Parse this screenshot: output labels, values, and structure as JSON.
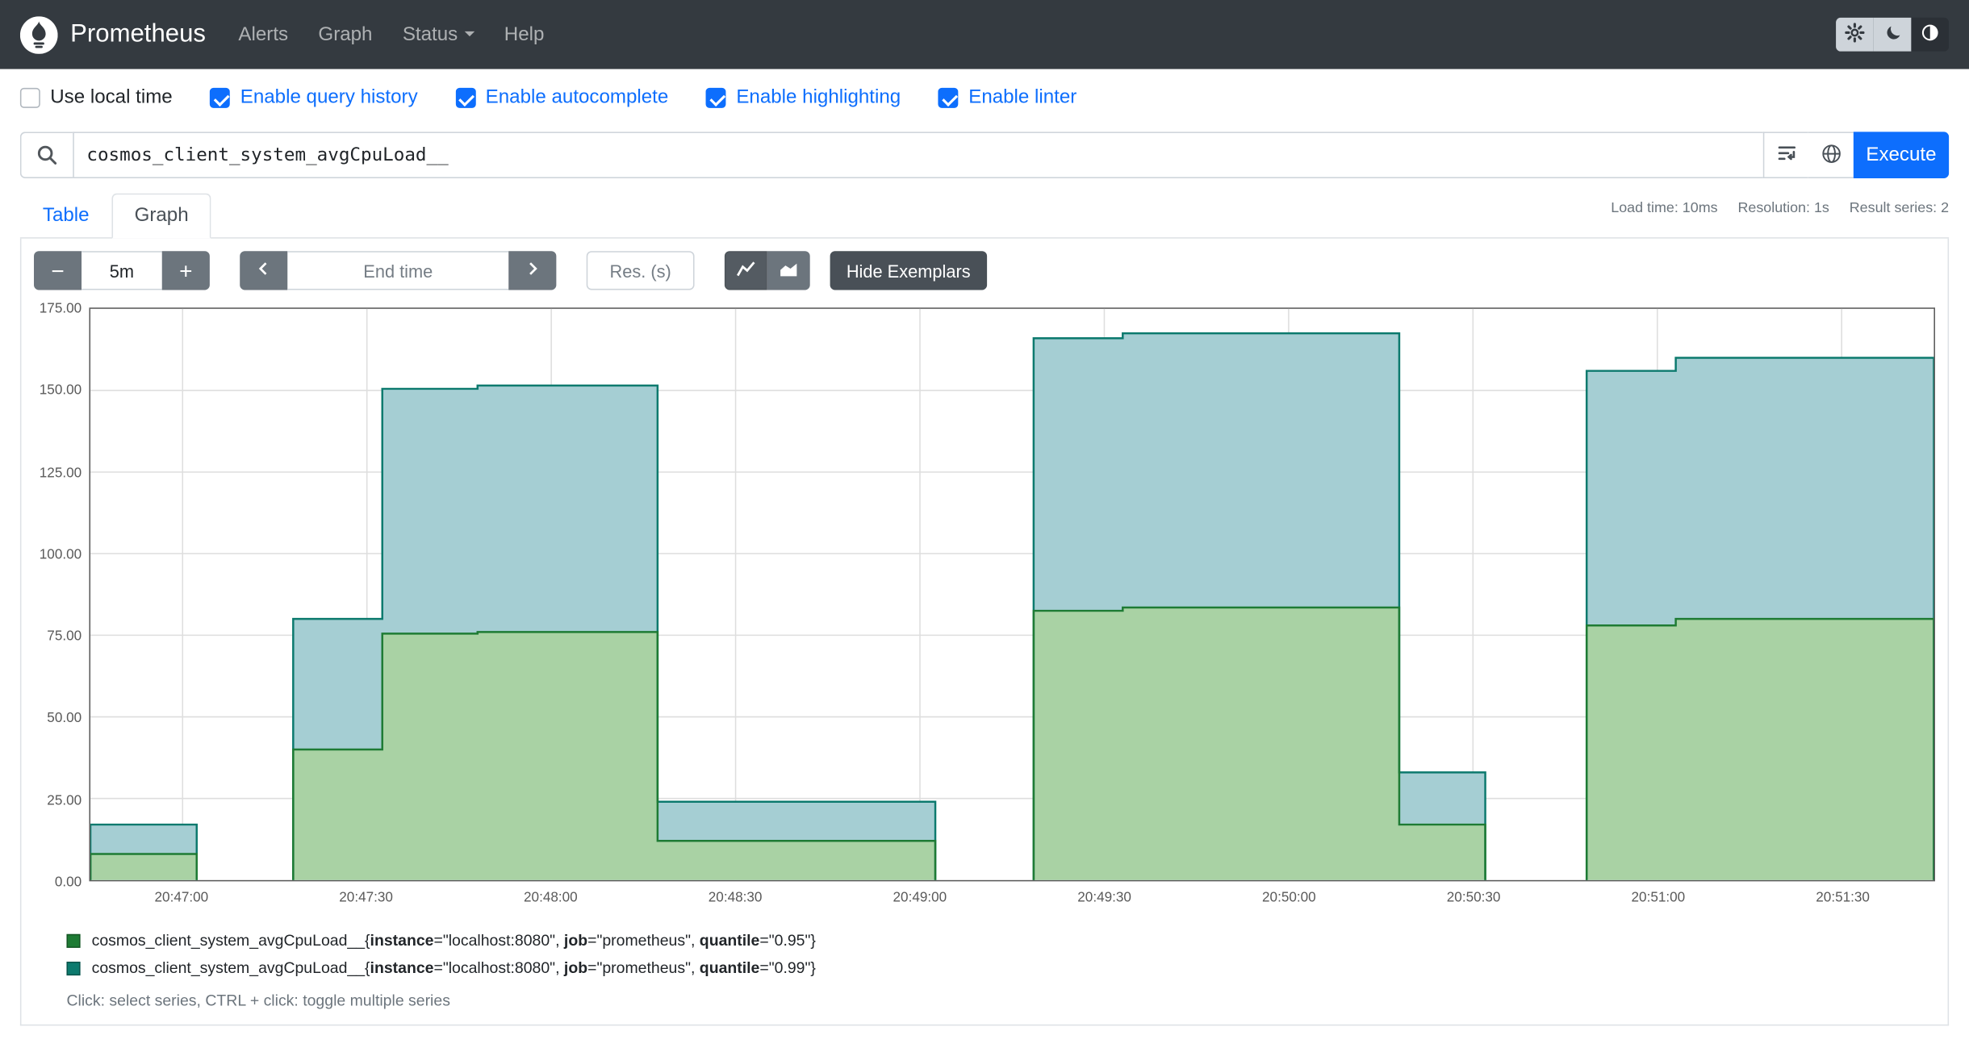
{
  "navbar": {
    "brand": "Prometheus",
    "links": [
      {
        "label": "Alerts"
      },
      {
        "label": "Graph"
      },
      {
        "label": "Status",
        "has_caret": true
      },
      {
        "label": "Help"
      }
    ]
  },
  "settings": {
    "checkboxes": [
      {
        "label": "Use local time",
        "checked": false
      },
      {
        "label": "Enable query history",
        "checked": true
      },
      {
        "label": "Enable autocomplete",
        "checked": true
      },
      {
        "label": "Enable highlighting",
        "checked": true
      },
      {
        "label": "Enable linter",
        "checked": true
      }
    ]
  },
  "query": {
    "value": "cosmos_client_system_avgCpuLoad__",
    "execute_label": "Execute"
  },
  "stats": {
    "load_time": "Load time: 10ms",
    "resolution": "Resolution: 1s",
    "result_series": "Result series: 2"
  },
  "tabs": [
    {
      "label": "Table",
      "active": false
    },
    {
      "label": "Graph",
      "active": true
    }
  ],
  "controls": {
    "range_value": "5m",
    "minus_label": "−",
    "plus_label": "+",
    "end_time_placeholder": "End time",
    "res_placeholder": "Res. (s)",
    "hide_exemplars_label": "Hide Exemplars"
  },
  "chart_data": {
    "type": "area",
    "title": "",
    "x_window_seconds": 300,
    "y_max": 175,
    "grid": true,
    "y_ticks": [
      0,
      25,
      50,
      75,
      100,
      125,
      150,
      175
    ],
    "x_ticks": [
      {
        "t": 15,
        "label": "20:47:00"
      },
      {
        "t": 45,
        "label": "20:47:30"
      },
      {
        "t": 75,
        "label": "20:48:00"
      },
      {
        "t": 105,
        "label": "20:48:30"
      },
      {
        "t": 135,
        "label": "20:49:00"
      },
      {
        "t": 165,
        "label": "20:49:30"
      },
      {
        "t": 195,
        "label": "20:50:00"
      },
      {
        "t": 225,
        "label": "20:50:30"
      },
      {
        "t": 255,
        "label": "20:51:00"
      },
      {
        "t": 285,
        "label": "20:51:30"
      }
    ],
    "series": [
      {
        "name": "quantile 0.95",
        "color": "#1e7b34",
        "fill": "#a9d2a4",
        "segments": [
          [
            [
              0,
              8
            ],
            [
              17.3,
              8
            ]
          ],
          [
            [
              33,
              40
            ],
            [
              47.5,
              40
            ],
            [
              47.5,
              75.5
            ],
            [
              63,
              75.5
            ],
            [
              63,
              76
            ],
            [
              92.3,
              76
            ],
            [
              92.3,
              12
            ],
            [
              137.5,
              12
            ]
          ],
          [
            [
              153.5,
              82.5
            ],
            [
              168,
              82.5
            ],
            [
              168,
              83.5
            ],
            [
              213,
              83.5
            ],
            [
              213,
              17
            ],
            [
              227,
              17
            ]
          ],
          [
            [
              243.5,
              78
            ],
            [
              258,
              78
            ],
            [
              258,
              80
            ],
            [
              300,
              80
            ]
          ]
        ]
      },
      {
        "name": "quantile 0.99",
        "color": "#0c7a6e",
        "fill": "#a5ced3",
        "segments": [
          [
            [
              0,
              17
            ],
            [
              17.3,
              17
            ]
          ],
          [
            [
              33,
              80
            ],
            [
              47.5,
              80
            ],
            [
              47.5,
              150.5
            ],
            [
              63,
              150.5
            ],
            [
              63,
              151.5
            ],
            [
              92.3,
              151.5
            ],
            [
              92.3,
              24
            ],
            [
              137.5,
              24
            ]
          ],
          [
            [
              153.5,
              166
            ],
            [
              168,
              166
            ],
            [
              168,
              167.5
            ],
            [
              213,
              167.5
            ],
            [
              213,
              33
            ],
            [
              227,
              33
            ]
          ],
          [
            [
              243.5,
              156
            ],
            [
              258,
              156
            ],
            [
              258,
              160
            ],
            [
              300,
              160
            ]
          ]
        ]
      }
    ]
  },
  "legend": {
    "series": [
      {
        "color": "#1e7b34",
        "metric": "cosmos_client_system_avgCpuLoad__",
        "labels": [
          {
            "name": "instance",
            "value": "localhost:8080"
          },
          {
            "name": "job",
            "value": "prometheus"
          },
          {
            "name": "quantile",
            "value": "0.95"
          }
        ]
      },
      {
        "color": "#0c7a6e",
        "metric": "cosmos_client_system_avgCpuLoad__",
        "labels": [
          {
            "name": "instance",
            "value": "localhost:8080"
          },
          {
            "name": "job",
            "value": "prometheus"
          },
          {
            "name": "quantile",
            "value": "0.99"
          }
        ]
      }
    ],
    "hint": "Click: select series, CTRL + click: toggle multiple series"
  }
}
